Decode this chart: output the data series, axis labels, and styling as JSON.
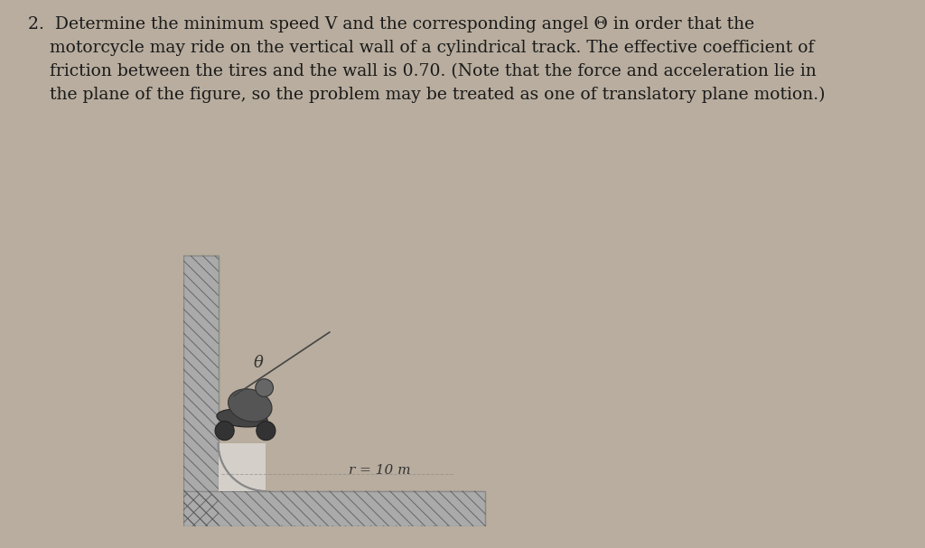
{
  "background_color": "#c8bfb0",
  "text_block": "2.  Determine the minimum speed V and the corresponding angel Θ in order that the\n    motorcycle may ride on the vertical wall of a cylindrical track. The effective coefficient of\n    friction between the tires and the wall is 0.70. (Note that the force and acceleration lie in\n    the plane of the figure, so the problem may be treated as one of translatory plane motion.)",
  "diagram_label_r": "r = 10 m",
  "diagram_label_theta": "θ",
  "fig_bg": "#b8ad9e",
  "diagram_bg": "#d4cfc8",
  "wall_color": "#888888",
  "wall_hatch_color": "#555555",
  "text_color": "#1a1a1a",
  "font_size_main": 13.5,
  "font_size_label": 11
}
